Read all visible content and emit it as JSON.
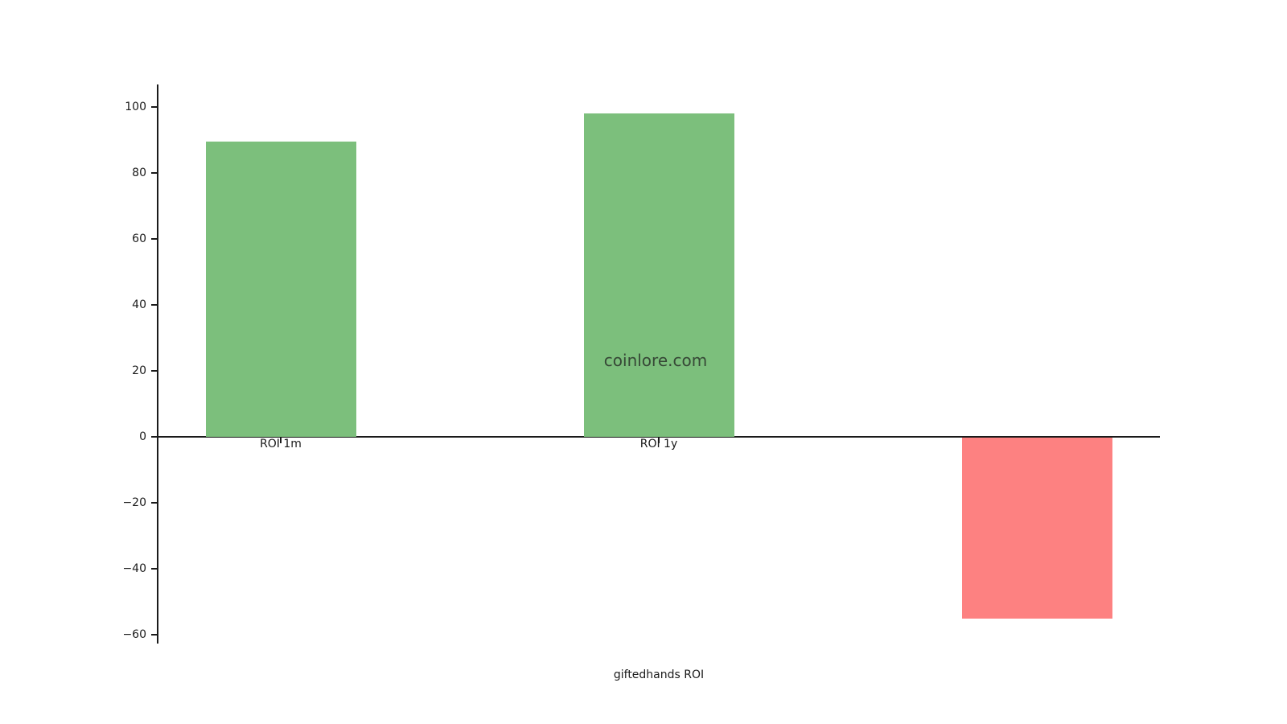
{
  "watermark": {
    "text": "coinlore.com"
  },
  "chart_data": {
    "type": "bar",
    "title": "giftedhands ROI",
    "categories": [
      "ROI 1m",
      "ROI 1y",
      ""
    ],
    "values": [
      89.5,
      98,
      -55
    ],
    "xlabel": "",
    "ylabel": "",
    "ylim": [
      -65,
      107
    ],
    "yticks": [
      100,
      80,
      60,
      40,
      20,
      0,
      -20,
      -40,
      -60
    ],
    "ytick_labels": [
      "100",
      "80",
      "60",
      "40",
      "20",
      "0",
      "−20",
      "−40",
      "−60"
    ],
    "grid": false,
    "legend": "none",
    "watermark": "coinlore.com",
    "colors": {
      "positive_bar": "#7cbf7c",
      "negative_bar": "#fd8181",
      "axis": "#1a1a1a",
      "text": "#1a1a1a",
      "watermark": "rgba(42,50,42,0.85)"
    }
  }
}
